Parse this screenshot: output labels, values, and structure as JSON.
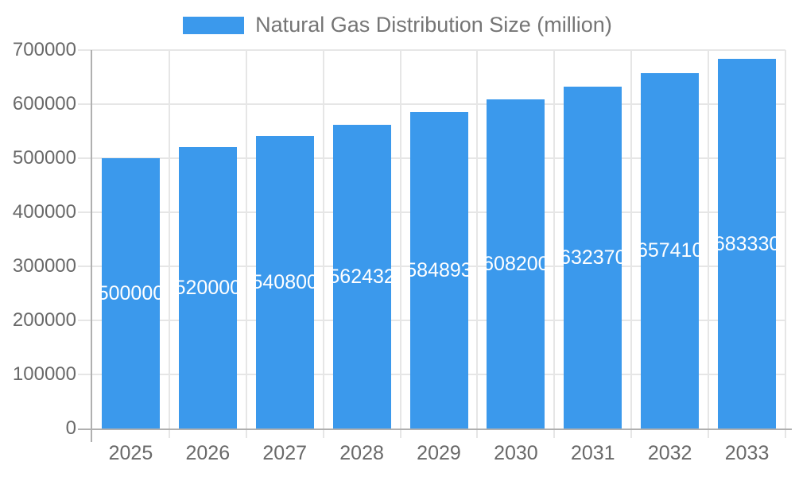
{
  "chart_data": {
    "type": "bar",
    "title": "Natural Gas Distribution Size (million)",
    "legend_position": "top",
    "categories": [
      "2025",
      "2026",
      "2027",
      "2028",
      "2029",
      "2030",
      "2031",
      "2032",
      "2033"
    ],
    "values": [
      500000,
      520000,
      540800,
      562432,
      584893,
      608200,
      632370,
      657410,
      683330
    ],
    "bar_labels": [
      "500000",
      "520000",
      "540800",
      "562432",
      "584893",
      "608200",
      "632370",
      "657410",
      "683330"
    ],
    "xlabel": "",
    "ylabel": "",
    "ylim": [
      0,
      700000
    ],
    "ytick_values": [
      0,
      100000,
      200000,
      300000,
      400000,
      500000,
      600000,
      700000
    ],
    "ytick_labels": [
      "0",
      "100000",
      "200000",
      "300000",
      "400000",
      "500000",
      "600000",
      "700000"
    ],
    "grid": true,
    "colors": {
      "bar": "#3B99EC",
      "bar_label": "#FFFFFF",
      "axis_label": "#696969",
      "legend_text": "#757575",
      "gridline": "#E6E6E6",
      "axis_line": "#B0B0B0",
      "background": "#FFFFFF"
    }
  }
}
